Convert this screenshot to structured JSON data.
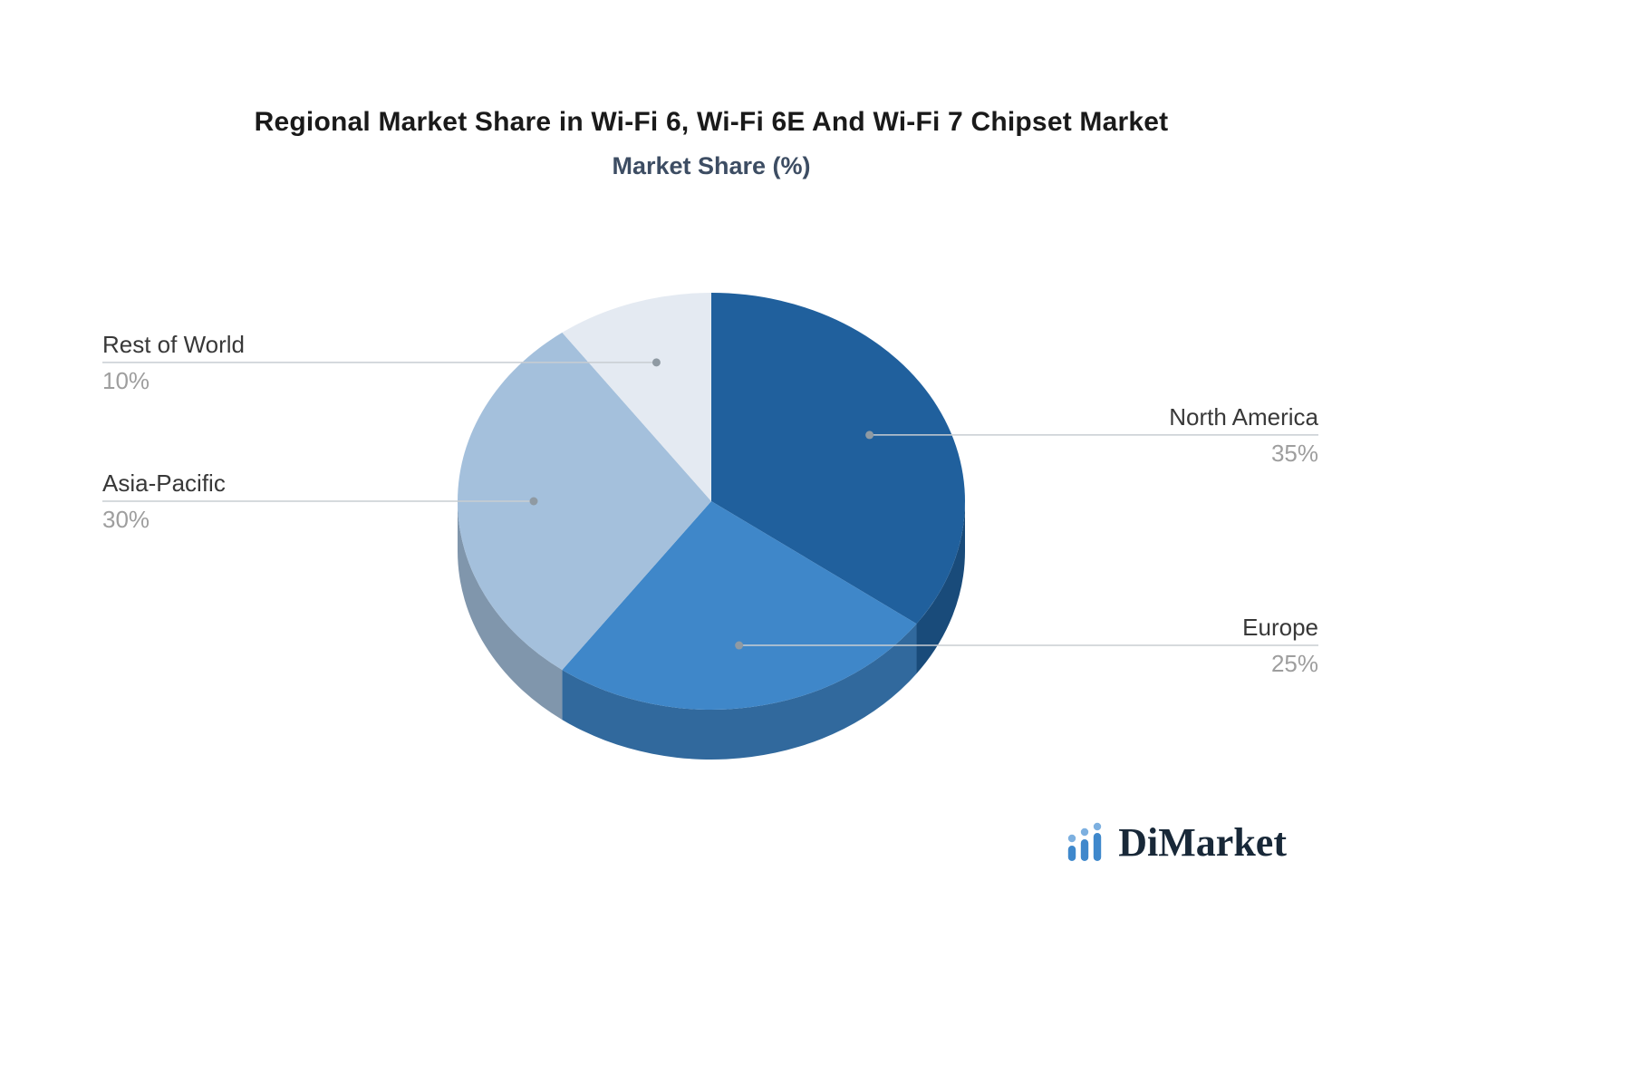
{
  "chart_data": {
    "type": "pie",
    "style": "3d",
    "title": "Regional Market Share in Wi-Fi 6, Wi-Fi 6E And Wi-Fi 7 Chipset Market",
    "subtitle": "Market Share (%)",
    "unit": "%",
    "start_angle_deg": 0,
    "direction": "clockwise",
    "legend_position": "none",
    "slices": [
      {
        "label": "North America",
        "value": 35,
        "display": "35%",
        "color": "#20609d"
      },
      {
        "label": "Europe",
        "value": 25,
        "display": "25%",
        "color": "#3f87c9"
      },
      {
        "label": "Asia-Pacific",
        "value": 30,
        "display": "30%",
        "color": "#a4c0dc"
      },
      {
        "label": "Rest of World",
        "value": 10,
        "display": "10%",
        "color": "#e4eaf2"
      }
    ],
    "leader_line_color": "#c8cdd2",
    "leader_dot_color": "#8f9aa3"
  },
  "branding": {
    "logo_text": "DiMarket",
    "logo_icon": "bar-chart-dots-icon",
    "logo_text_color": "#182838",
    "logo_accent_color": "#3f88cc"
  }
}
